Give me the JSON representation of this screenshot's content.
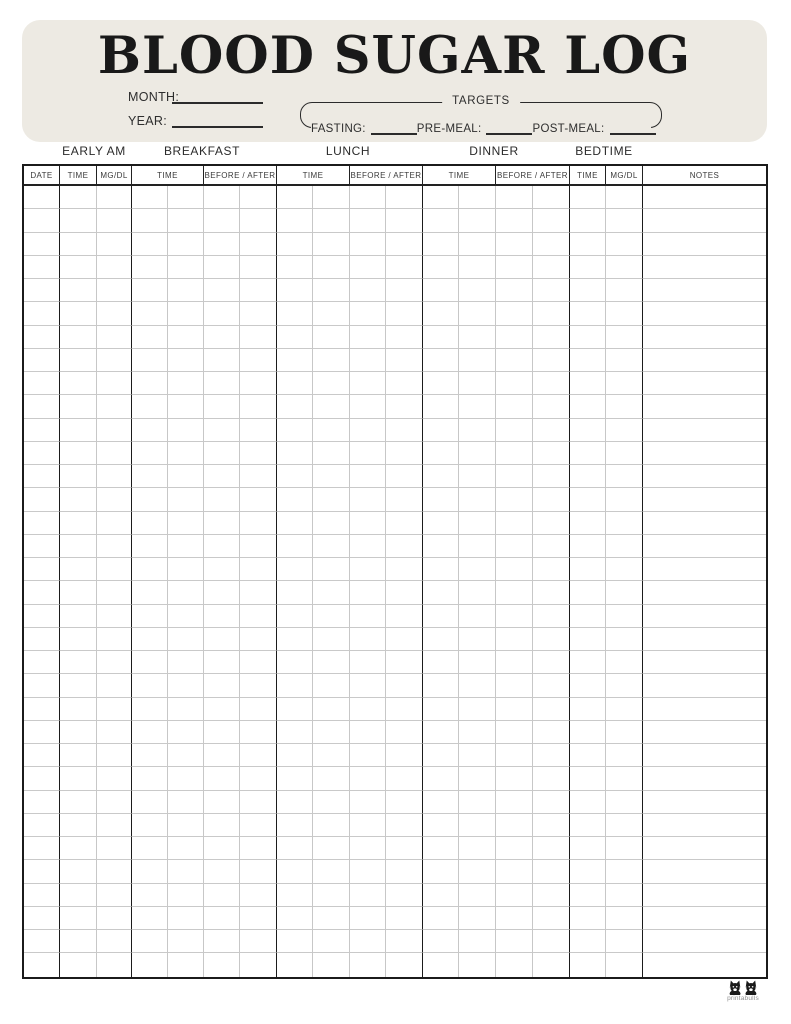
{
  "title": "BLOOD SUGAR LOG",
  "fields": {
    "month_label": "MONTH:",
    "year_label": "YEAR:"
  },
  "targets": {
    "box_label": "TARGETS",
    "fasting_label": "FASTING:",
    "pre_meal_label": "PRE-MEAL:",
    "post_meal_label": "POST-MEAL:"
  },
  "table": {
    "group_headers": [
      "EARLY AM",
      "BREAKFAST",
      "LUNCH",
      "DINNER",
      "BEDTIME"
    ],
    "column_headers": [
      "DATE",
      "TIME",
      "MG/DL",
      "TIME",
      "BEFORE / AFTER",
      "TIME",
      "BEFORE / AFTER",
      "TIME",
      "BEFORE / AFTER",
      "TIME",
      "MG/DL",
      "NOTES"
    ],
    "row_count": 34
  },
  "branding": {
    "logo_icon": "two-bulldogs-icon",
    "logo_text": "printabulls"
  },
  "colors": {
    "band_bg": "#edeae3",
    "line_dark": "#1b1b1b",
    "line_light": "#c7c7c7",
    "text_dark": "#191919",
    "brand_text": "#8f8f8f"
  }
}
